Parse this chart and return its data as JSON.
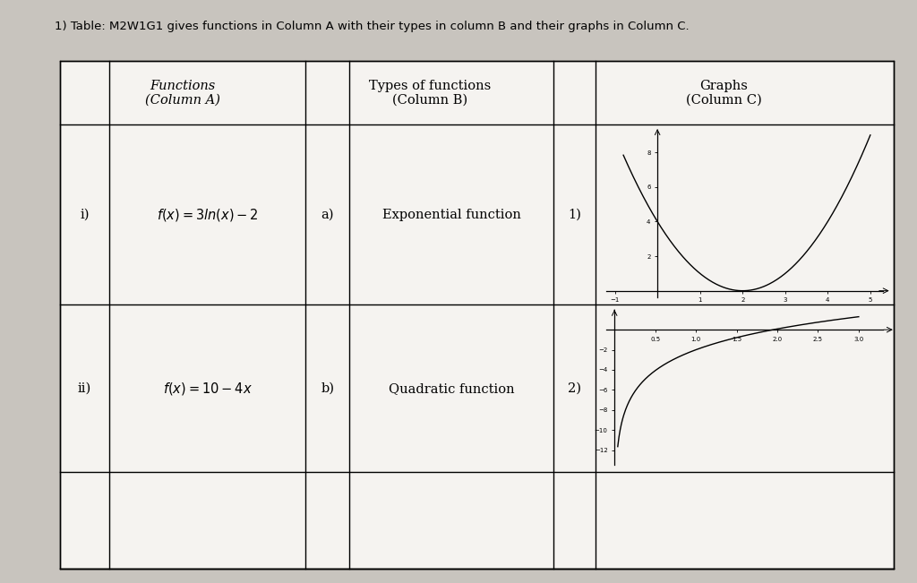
{
  "title": "1) Table: M2W1G1 gives functions in Column A with their types in column B and their graphs in Column C.",
  "title_fontsize": 9.5,
  "background_color": "#c8c4be",
  "cell_bg": "#f5f3f0",
  "header_col_a": "Functions\n(Column A)",
  "header_col_b": "Types of functions\n(Column B)",
  "header_col_c": "Graphs\n(Column C)",
  "row_i_label": "i)",
  "row_i_func": "$f(x) = 3ln(x) - 2$",
  "row_i_type_label": "a)",
  "row_i_type": "Exponential function",
  "row_i_graph": "1)",
  "row_ii_label": "ii)",
  "row_ii_func": "$f(x) = 10 - 4x$",
  "row_ii_type_label": "b)",
  "row_ii_type": "Quadratic function",
  "row_ii_graph": "2)",
  "graph1_xlim": [
    -1.2,
    5.3
  ],
  "graph1_ylim": [
    -0.4,
    9.2
  ],
  "graph1_xticks": [
    -1,
    1,
    2,
    3,
    4,
    5
  ],
  "graph1_yticks": [
    2,
    4,
    6,
    8
  ],
  "graph2_xlim": [
    -0.1,
    3.3
  ],
  "graph2_ylim": [
    -13.5,
    1.8
  ],
  "graph2_xticks": [
    0.5,
    1,
    1.5,
    2,
    2.5,
    3
  ],
  "graph2_yticks": [
    -2,
    -4,
    -6,
    -8,
    -10,
    -12
  ]
}
